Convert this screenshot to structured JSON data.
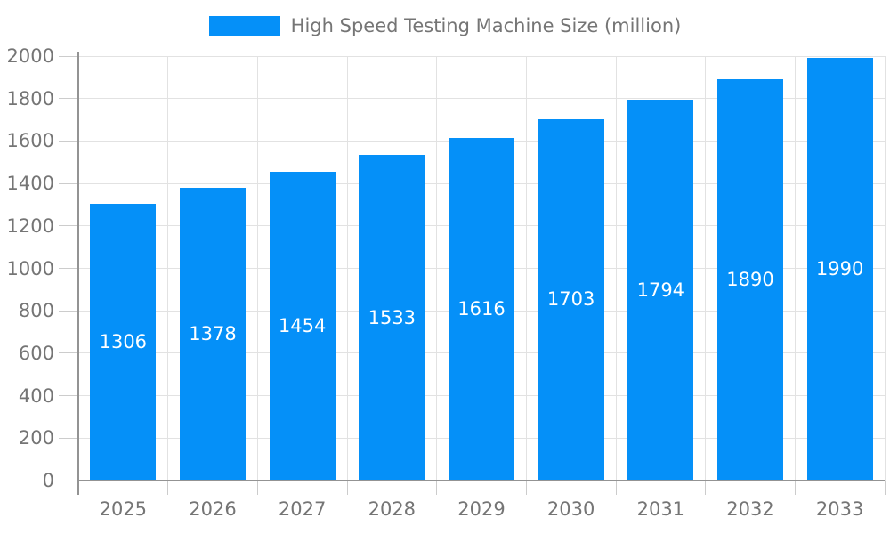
{
  "chart_data": {
    "type": "bar",
    "title": "",
    "legend": "High Speed Testing Machine Size (million)",
    "legend_position": "top-center",
    "categories": [
      "2025",
      "2026",
      "2027",
      "2028",
      "2029",
      "2030",
      "2031",
      "2032",
      "2033"
    ],
    "values": [
      1306,
      1378,
      1454,
      1533,
      1616,
      1703,
      1794,
      1890,
      1990
    ],
    "value_labels_position": "inside-center",
    "xlabel": "",
    "ylabel": "",
    "ylim": [
      0,
      2000
    ],
    "yticks": [
      0,
      200,
      400,
      600,
      800,
      1000,
      1200,
      1400,
      1600,
      1800,
      2000
    ],
    "grid": true
  },
  "colors": {
    "bar": "#0590f8",
    "grid": "#e2e2e2",
    "tick": "#cccccc",
    "axis": "#939393",
    "text": "#757575",
    "value_label": "#ffffff",
    "background": "#ffffff"
  }
}
